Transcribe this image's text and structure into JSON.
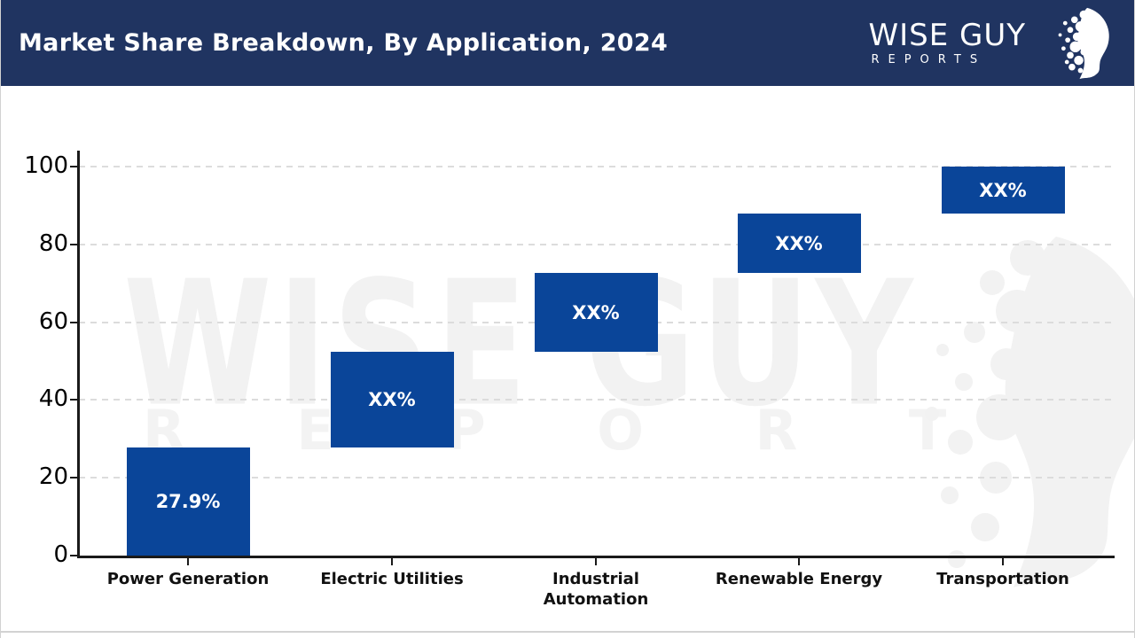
{
  "header": {
    "title": "Market Share Breakdown, By Application, 2024",
    "brand_line1": "WISE GUY",
    "brand_line2": "REPORTS",
    "bg_color": "#203461"
  },
  "watermark": {
    "line1": "WISE GUY",
    "line2": "R E P O R T S"
  },
  "chart_data": {
    "type": "bar",
    "subtype": "waterfall",
    "title": "Market Share Breakdown, By Application, 2024",
    "categories": [
      "Power Generation",
      "Electric Utilities",
      "Industrial\nAutomation",
      "Renewable Energy",
      "Transportation"
    ],
    "segments": [
      {
        "category": "Power Generation",
        "start": 0,
        "end": 27.9,
        "label": "27.9%"
      },
      {
        "category": "Electric Utilities",
        "start": 27.9,
        "end": 52.3,
        "label": "XX%"
      },
      {
        "category": "Industrial Automation",
        "start": 52.3,
        "end": 72.6,
        "label": "XX%"
      },
      {
        "category": "Renewable Energy",
        "start": 72.6,
        "end": 87.9,
        "label": "XX%"
      },
      {
        "category": "Transportation",
        "start": 87.9,
        "end": 100,
        "label": "XX%"
      }
    ],
    "yticks": [
      0,
      20,
      40,
      60,
      80,
      100
    ],
    "ylim": [
      0,
      100
    ],
    "grid": "horizontal-dashed",
    "legend": "none",
    "bar_color": "#0a4599",
    "label_color": "#ffffff",
    "axis_color": "#1a1a1a",
    "gridline_color": "#dcdcdc"
  }
}
